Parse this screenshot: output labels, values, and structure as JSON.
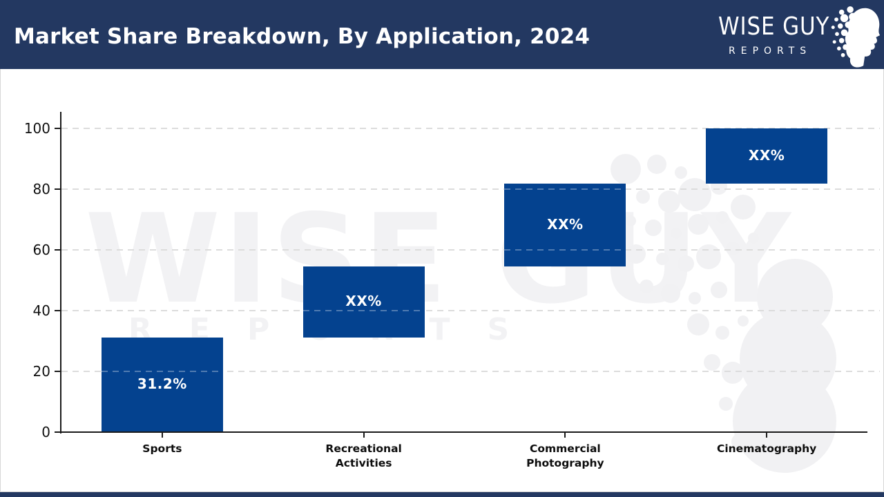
{
  "header": {
    "title": "Market Share Breakdown, By Application, 2024",
    "logo": {
      "name": "WISE GUY",
      "sub": "REPORTS"
    },
    "bg_color": "#233861"
  },
  "watermark": {
    "line1": "WISE GUY",
    "line2": "REPORTS"
  },
  "chart_data": {
    "type": "bar",
    "variant": "waterfall (floating cumulative segments)",
    "title": "Market Share Breakdown, By Application, 2024",
    "categories": [
      "Sports",
      "Recreational Activities",
      "Commercial Photography",
      "Cinematography"
    ],
    "category_label_lines": [
      [
        "Sports"
      ],
      [
        "Recreational",
        "Activities"
      ],
      [
        "Commercial",
        "Photography"
      ],
      [
        "Cinematography"
      ]
    ],
    "segments": [
      {
        "category": "Sports",
        "start": 0,
        "end": 31.2,
        "label": "31.2%"
      },
      {
        "category": "Recreational Activities",
        "start": 31.2,
        "end": 54.5,
        "label": "XX%"
      },
      {
        "category": "Commercial Photography",
        "start": 54.5,
        "end": 81.8,
        "label": "XX%"
      },
      {
        "category": "Cinematography",
        "start": 81.8,
        "end": 100,
        "label": "XX%"
      }
    ],
    "xlabel": "",
    "ylabel": "",
    "ylim": [
      0,
      105
    ],
    "yticks": [
      0,
      20,
      40,
      60,
      80,
      100
    ],
    "grid": "horizontal dashed",
    "legend": "none",
    "bar_color": "#04428F",
    "bar_label_color": "#FFFFFF",
    "axis_color": "#1A1A1A",
    "gridline_color": "#DCDCDC"
  }
}
